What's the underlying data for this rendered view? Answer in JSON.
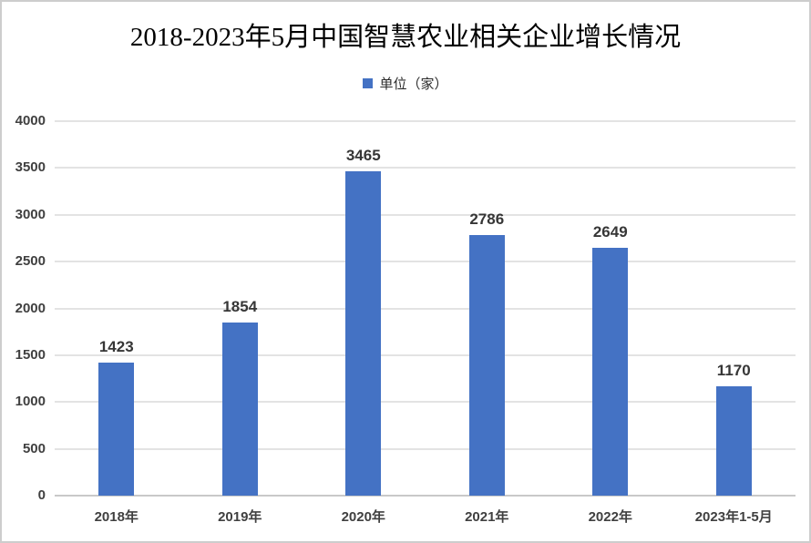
{
  "chart_data": {
    "type": "bar",
    "title": "2018-2023年5月中国智慧农业相关企业增长情况",
    "legend": "单位（家）",
    "categories": [
      "2018年",
      "2019年",
      "2020年",
      "2021年",
      "2022年",
      "2023年1-5月"
    ],
    "values": [
      1423,
      1854,
      3465,
      2786,
      2649,
      1170
    ],
    "ylim": [
      0,
      4000
    ],
    "ytick_step": 500,
    "grid": true,
    "legend_position": "top-center",
    "data_labels": true
  },
  "colors": {
    "bar": "#4472C4",
    "gridline": "#e3e3e3",
    "axis_line": "#c9c9c9",
    "tick_label": "#404040",
    "data_label": "#363636",
    "title": "#000000",
    "frame_border": "#cdcdcd",
    "background": "#ffffff"
  }
}
